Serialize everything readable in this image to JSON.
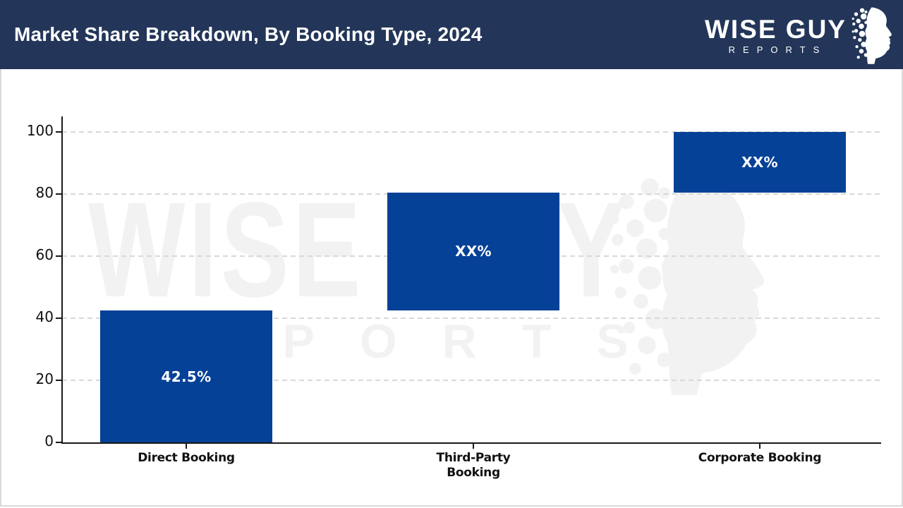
{
  "header": {
    "title": "Market Share Breakdown, By Booking Type, 2024",
    "logo": {
      "line1": "WISE GUY",
      "line2": "REPORTS"
    }
  },
  "watermark": {
    "line1": "WISE GUY",
    "line2": "REPORTS"
  },
  "colors": {
    "header_bg": "#233659",
    "bar": "#054196",
    "bar_label": "#ffffff",
    "grid": "#d8d8d8",
    "axis": "#1a1a1a",
    "watermark": "#f2f2f2",
    "page_border": "#d9d9d9"
  },
  "chart_data": {
    "type": "bar",
    "subtype": "waterfall",
    "title": "Market Share Breakdown, By Booking Type, 2024",
    "categories": [
      "Direct Booking",
      "Third-Party\nBooking",
      "Corporate Booking"
    ],
    "series": [
      {
        "name": "Market Share (%)",
        "segments": [
          {
            "category": "Direct Booking",
            "start": 0,
            "end": 42.5,
            "label": "42.5%"
          },
          {
            "category": "Third-Party Booking",
            "start": 42.5,
            "end": 80.5,
            "label": "XX%"
          },
          {
            "category": "Corporate Booking",
            "start": 80.5,
            "end": 100,
            "label": "XX%"
          }
        ]
      }
    ],
    "xlabel": "",
    "ylabel": "",
    "ylim": [
      0,
      100
    ],
    "yticks": [
      0,
      20,
      40,
      60,
      80,
      100
    ],
    "grid": "dashed-horizontal",
    "legend": "none"
  }
}
